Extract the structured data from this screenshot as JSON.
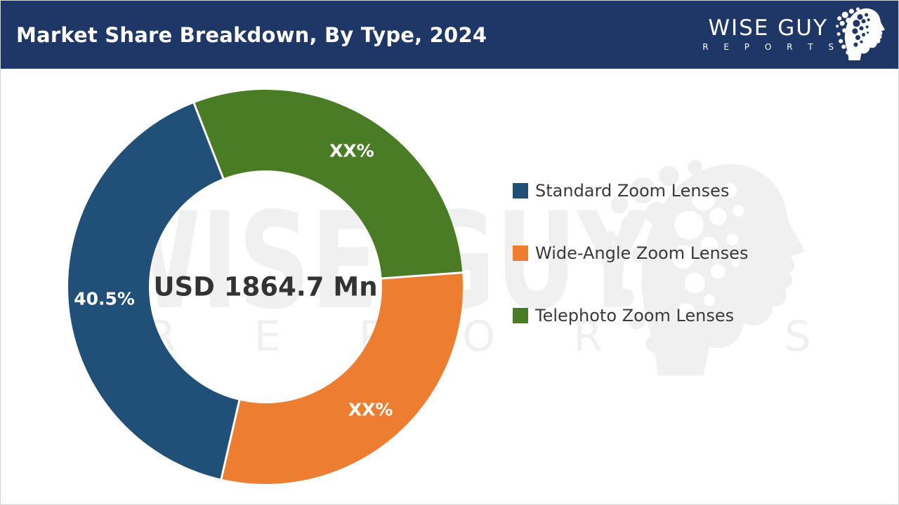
{
  "header": {
    "title": "Market Share Breakdown, By Type, 2024",
    "logo": {
      "name": "WISE GUY",
      "sub": "R E P O R T S"
    }
  },
  "watermark": {
    "line1": "WISE GUY",
    "line2": "R E P O R T S"
  },
  "chart_data": {
    "type": "pie",
    "subtype": "donut",
    "title": "Market Share Breakdown, By Type, 2024",
    "center_label": "USD 1864.7 Mn",
    "unit": "percent market share",
    "slices": [
      {
        "label": "Standard Zoom Lenses",
        "value": 40.5,
        "display_label": "40.5%",
        "color": "#204F77"
      },
      {
        "label": "Wide-Angle Zoom Lenses",
        "value": 29.75,
        "display_label": "XX%",
        "color": "#ED7D31"
      },
      {
        "label": "Telephoto Zoom Lenses",
        "value": 29.75,
        "display_label": "XX%",
        "color": "#4A7C26"
      }
    ],
    "start_angle_deg": 111.25,
    "direction": "counterclockwise",
    "legend_position": "right",
    "grid": false
  },
  "colors": {
    "header_bg": "#1F3766",
    "page_border": "#D5D5D5",
    "watermark": "#F0F0F1",
    "center_text": "#333333",
    "legend_text": "#3A3A3A"
  }
}
